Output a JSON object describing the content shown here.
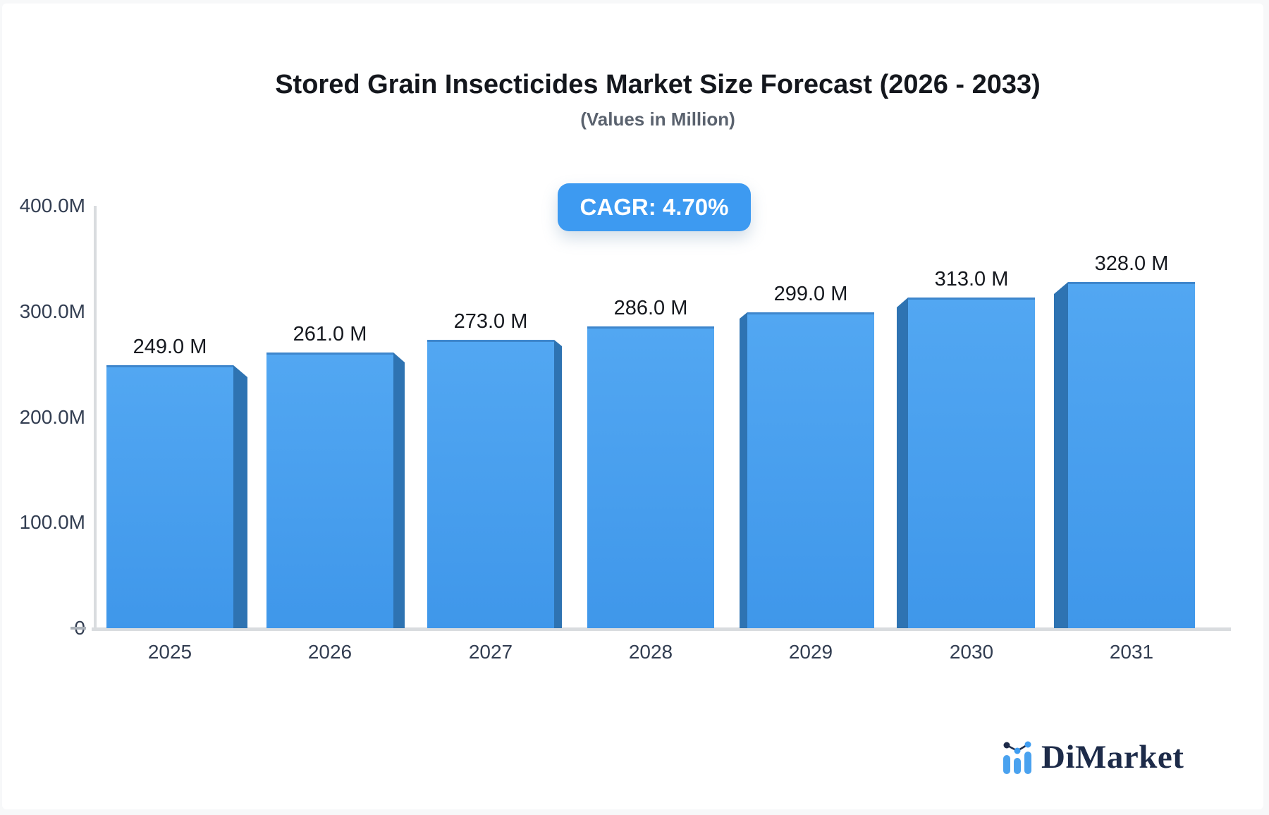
{
  "title": "Stored Grain Insecticides Market Size Forecast (2026 - 2033)",
  "subtitle": "(Values in Million)",
  "badge": {
    "label": "CAGR: 4.70%",
    "color": "#3d9af1"
  },
  "chart_data": {
    "type": "bar",
    "title": "Stored Grain Insecticides Market Size Forecast (2026 - 2033)",
    "subtitle": "(Values in Million)",
    "categories": [
      "2025",
      "2026",
      "2027",
      "2028",
      "2029",
      "2030",
      "2031"
    ],
    "values": [
      249,
      261,
      273,
      286,
      299,
      313,
      328
    ],
    "value_labels": [
      "249.0 M",
      "261.0 M",
      "273.0 M",
      "286.0 M",
      "299.0 M",
      "313.0 M",
      "328.0 M"
    ],
    "unit": "Million",
    "xlabel": "",
    "ylabel": "",
    "ylim": [
      0,
      400
    ],
    "y_ticks": [
      {
        "label": "400.0M",
        "value": 400
      },
      {
        "label": "300.0M",
        "value": 300
      },
      {
        "label": "200.0M",
        "value": 200
      },
      {
        "label": "100.0M",
        "value": 100
      },
      {
        "label": "0",
        "value": 0
      }
    ],
    "grid": false,
    "legend": false,
    "bar_style": "3d",
    "colors": {
      "bar_face_top": "#52a7f2",
      "bar_face_bottom": "#3f97ea",
      "bar_side": "#2e73b2",
      "bar_top_edge": "#3e86cc",
      "axis": "#d9dcdf"
    }
  },
  "logo": {
    "text": "DiMarket",
    "icon": "mini-bar-chart-icon",
    "navy": "#1d2b49",
    "blue": "#4aa2ef"
  }
}
